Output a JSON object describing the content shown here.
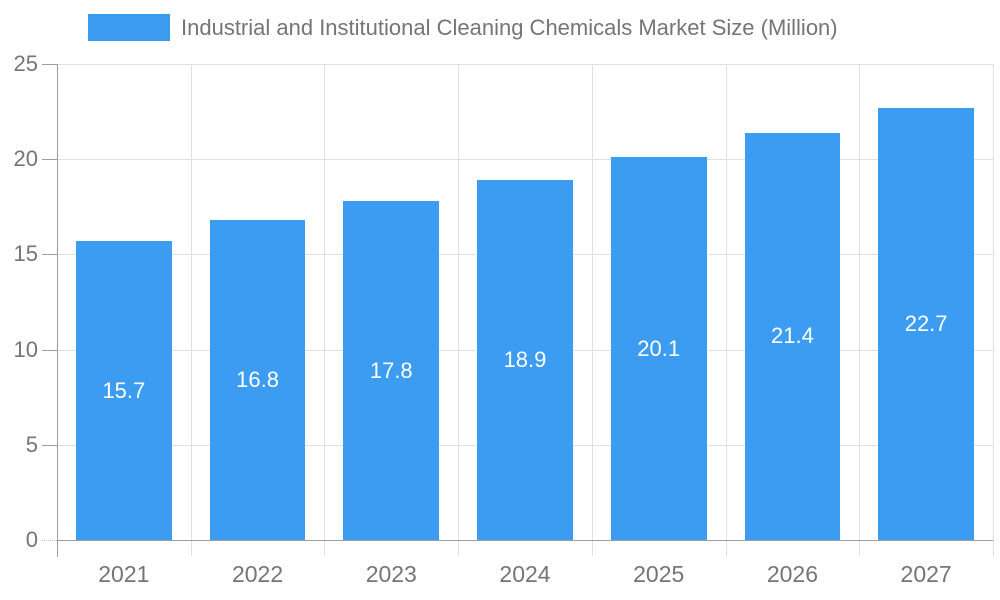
{
  "chart_data": {
    "type": "bar",
    "title": "Industrial and Institutional Cleaning Chemicals Market Size (Million)",
    "categories": [
      "2021",
      "2022",
      "2023",
      "2024",
      "2025",
      "2026",
      "2027"
    ],
    "values": [
      15.7,
      16.8,
      17.8,
      18.9,
      20.1,
      21.4,
      22.7
    ],
    "value_labels": [
      "15.7",
      "16.8",
      "17.8",
      "18.9",
      "20.1",
      "21.4",
      "22.7"
    ],
    "xlabel": "",
    "ylabel": "",
    "ylim": [
      0,
      25
    ],
    "yticks": [
      0,
      5,
      10,
      15,
      20,
      25
    ],
    "ytick_labels": [
      "0",
      "5",
      "10",
      "15",
      "20",
      "25"
    ],
    "grid": true,
    "legend_position": "top",
    "colors": {
      "bar": "#3b9cf2",
      "grid": "#e0e0e0",
      "axis": "#9e9e9e",
      "tick_text": "#757575",
      "legend_text": "#757575",
      "value_label_text": "#ffffff",
      "background": "#ffffff"
    }
  }
}
